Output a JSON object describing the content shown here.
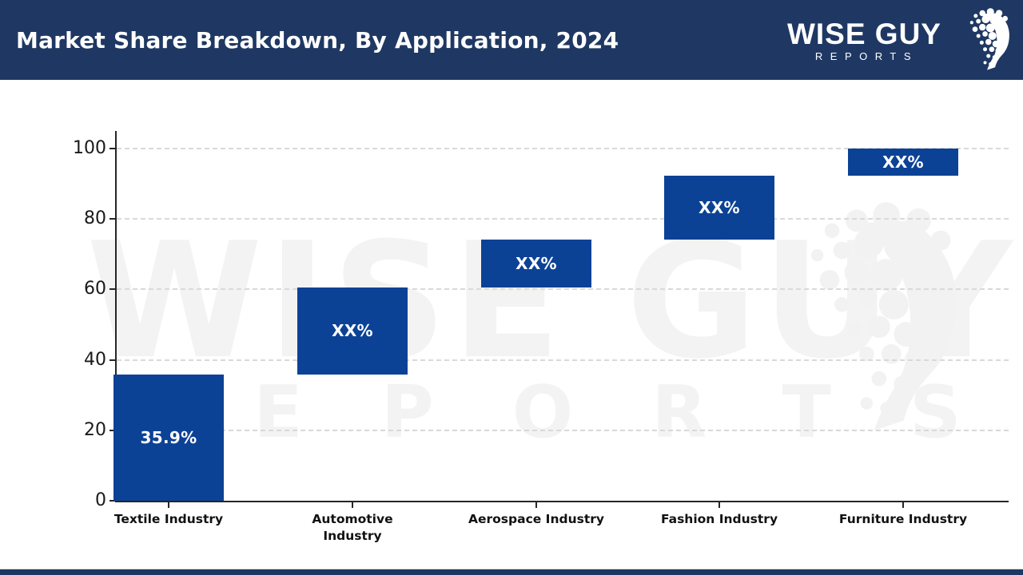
{
  "header": {
    "title": "Market Share Breakdown, By Application, 2024",
    "bg_color": "#1f3863",
    "logo": {
      "wordmark": "WISE GUY",
      "subtext": "REPORTS"
    }
  },
  "watermark": {
    "wordmark": "WISE GUY",
    "subtext": "REPORTS"
  },
  "chart_data": {
    "type": "bar",
    "subtype": "waterfall",
    "title": "Market Share Breakdown, By Application, 2024",
    "xlabel": "",
    "ylabel": "",
    "ylim": [
      0,
      105
    ],
    "yticks": [
      0,
      20,
      40,
      60,
      80,
      100
    ],
    "grid": "horizontal-dashed",
    "legend": "none",
    "bar_color": "#0c4296",
    "value_label_color": "#ffffff",
    "categories": [
      "Textile Industry",
      "Automotive Industry",
      "Aerospace Industry",
      "Fashion Industry",
      "Furniture Industry"
    ],
    "tick_labels": [
      "Textile Industry",
      "Automotive\nIndustry",
      "Aerospace Industry",
      "Fashion Industry",
      "Furniture Industry"
    ],
    "bars": [
      {
        "category": "Textile Industry",
        "start": 0,
        "end": 35.9,
        "value": 35.9,
        "label": "35.9%"
      },
      {
        "category": "Automotive Industry",
        "start": 35.9,
        "end": 60.6,
        "value": 24.7,
        "label": "XX%"
      },
      {
        "category": "Aerospace Industry",
        "start": 60.6,
        "end": 74.1,
        "value": 13.5,
        "label": "XX%"
      },
      {
        "category": "Fashion Industry",
        "start": 74.1,
        "end": 92.2,
        "value": 18.1,
        "label": "XX%"
      },
      {
        "category": "Furniture Industry",
        "start": 92.2,
        "end": 100.0,
        "value": 7.8,
        "label": "XX%"
      }
    ]
  }
}
